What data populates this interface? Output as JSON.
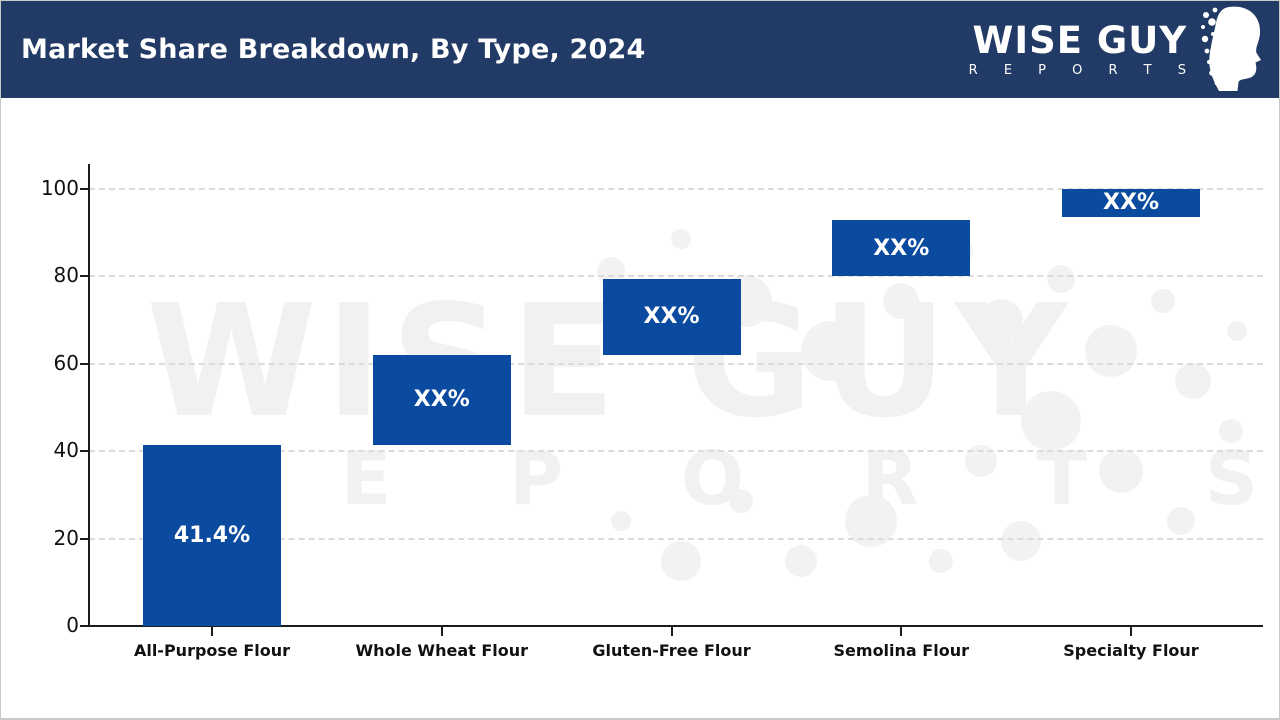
{
  "header": {
    "title": "Market Share Breakdown, By Type, 2024",
    "bg_color": "#223a66",
    "logo": {
      "line1": "WISE GUY",
      "line2": "R E P O R T S"
    }
  },
  "watermark": {
    "line1": "WISE GUY",
    "line2": "R E P O R T S",
    "color": "#f1f1f1"
  },
  "chart_data": {
    "type": "bar",
    "subtype": "waterfall",
    "title": "Market Share Breakdown, By Type, 2024",
    "categories": [
      "All-Purpose Flour",
      "Whole Wheat Flour",
      "Gluten-Free Flour",
      "Semolina Flour",
      "Specialty Flour"
    ],
    "segments": [
      {
        "category": "All-Purpose Flour",
        "start": 0,
        "end": 41.4,
        "label": "41.4%"
      },
      {
        "category": "Whole Wheat Flour",
        "start": 41.4,
        "end": 62.0,
        "label": "XX%"
      },
      {
        "category": "Gluten-Free Flour",
        "start": 62.0,
        "end": 79.3,
        "label": "XX%"
      },
      {
        "category": "Semolina Flour",
        "start": 79.9,
        "end": 92.8,
        "label": "XX%"
      },
      {
        "category": "Specialty Flour",
        "start": 93.4,
        "end": 100.0,
        "label": "XX%"
      }
    ],
    "y_ticks": [
      0,
      20,
      40,
      60,
      80,
      100
    ],
    "ylim": [
      0,
      105.6
    ],
    "xlabel": "",
    "ylabel": "",
    "grid": "horizontal-dashed",
    "legend": "none",
    "bar_color": "#0a4a9f",
    "bar_label_color": "#ffffff",
    "grid_color": "#dbdbdb"
  }
}
